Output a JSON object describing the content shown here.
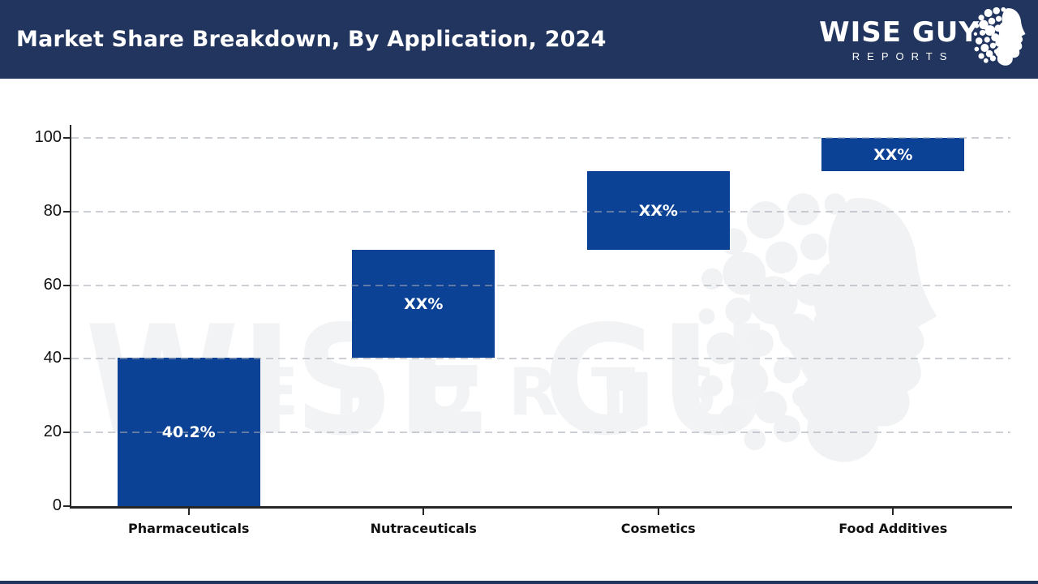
{
  "header": {
    "title": "Market Share Breakdown, By Application, 2024",
    "logo": {
      "wordmark": "WISE GUY",
      "subtext": "REPORTS"
    }
  },
  "watermark": {
    "wordmark": "WISE GUY",
    "subtext": "REPORTS"
  },
  "colors": {
    "header_bg": "#21355F",
    "bar": "#0B4295",
    "axis": "#262626",
    "watermark": "#F2F3F5",
    "bar_label_text": "#FFFFFF",
    "tick_text": "#111111"
  },
  "chart_data": {
    "type": "bar",
    "subtype": "waterfall",
    "title": "Market Share Breakdown, By Application, 2024",
    "categories": [
      "Pharmaceuticals",
      "Nutraceuticals",
      "Cosmetics",
      "Food Additives"
    ],
    "segments": [
      {
        "category": "Pharmaceuticals",
        "start": 0,
        "end": 40.2,
        "label": "40.2%"
      },
      {
        "category": "Nutraceuticals",
        "start": 40.2,
        "end": 69.6,
        "label": "XX%"
      },
      {
        "category": "Cosmetics",
        "start": 69.6,
        "end": 90.9,
        "label": "XX%"
      },
      {
        "category": "Food Additives",
        "start": 90.9,
        "end": 100,
        "label": "XX%"
      }
    ],
    "xlabel": "",
    "ylabel": "",
    "ylim": [
      0,
      100
    ],
    "yticks": [
      0,
      20,
      40,
      60,
      80,
      100
    ],
    "grid": "dashed-horizontal",
    "legend": "none",
    "bar_color": "#0B4295"
  }
}
